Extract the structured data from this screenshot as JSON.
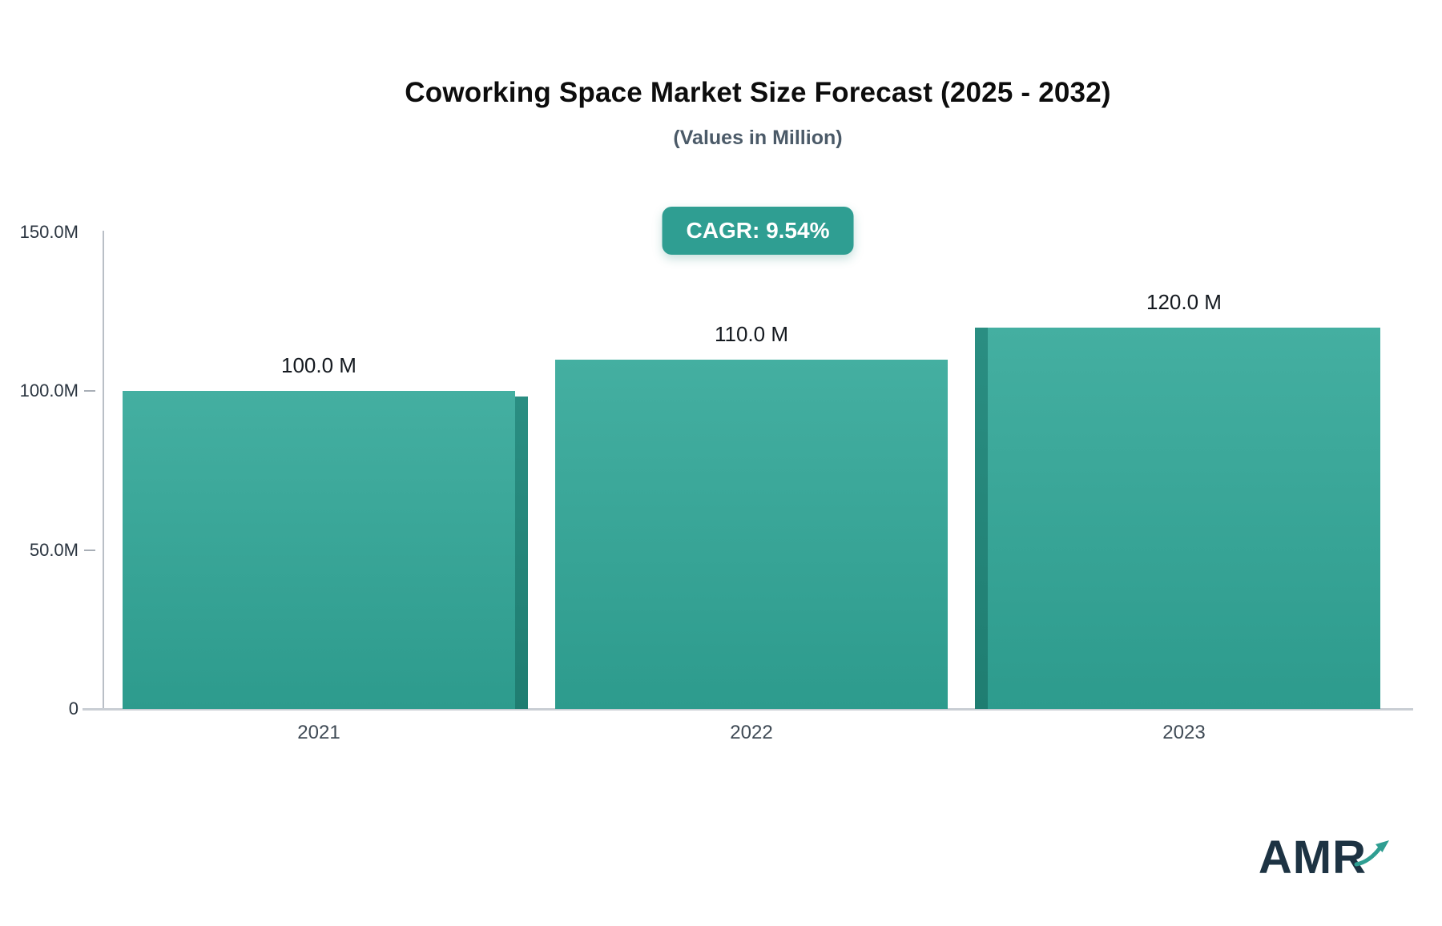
{
  "header": {
    "title": "Coworking Space Market Size Forecast (2025 - 2032)",
    "subtitle": "(Values in Million)",
    "badge": "CAGR: 9.54%"
  },
  "chart_data": {
    "type": "bar",
    "title": "Coworking Space Market Size Forecast (2025 - 2032)",
    "subtitle": "(Values in Million)",
    "badge": "CAGR: 9.54%",
    "categories": [
      "2021",
      "2022",
      "2023"
    ],
    "values": [
      100,
      110,
      120
    ],
    "value_labels": [
      "100.0 M",
      "110.0 M",
      "120.0 M"
    ],
    "yticks": [
      {
        "value": 0,
        "label": "0"
      },
      {
        "value": 50,
        "label": "50.0M"
      },
      {
        "value": 100,
        "label": "100.0M"
      },
      {
        "value": 150,
        "label": "150.0M"
      }
    ],
    "ylim": [
      0,
      150
    ],
    "xlabel": "",
    "ylabel": "",
    "grid": false,
    "legend": null,
    "bar_color_top": "#44afa1",
    "bar_color_bottom": "#2d9b8d",
    "bar_edge_color": "#1f7d71",
    "badge_color": "#2f9e92"
  },
  "logo": {
    "text": "AMR",
    "arrow_icon": "trend-arrow-icon",
    "arrow_color": "#2f9e92"
  }
}
